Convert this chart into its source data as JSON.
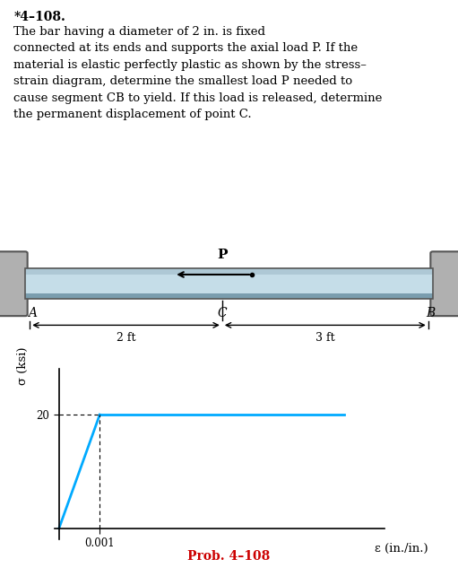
{
  "title_text": "*4–108.",
  "body_text": "The bar having a diameter of 2 in. is fixed\nconnected at its ends and supports the axial load **P**. If the\nmaterial is elastic perfectly plastic as shown by the stress–\nstrain diagram, determine the smallest load *P* needed to\ncause segment *CB* to yield. If this load is released, determine\nthe permanent displacement of point *C*.",
  "prob_label": "Prob. 4–108",
  "bar_color_top": "#b0c8d8",
  "bar_color_mid": "#d8eaf5",
  "bar_color_bot": "#8aaabb",
  "wall_color": "#c0c0c0",
  "label_A": "A",
  "label_C": "C",
  "label_B": "B",
  "label_P": "P",
  "dim_left": "2 ft",
  "dim_right": "3 ft",
  "sigma_label": "σ (ksi)",
  "epsilon_label": "ε (in./in.)",
  "yield_stress": 20,
  "yield_strain": 0.001,
  "background": "#ffffff"
}
